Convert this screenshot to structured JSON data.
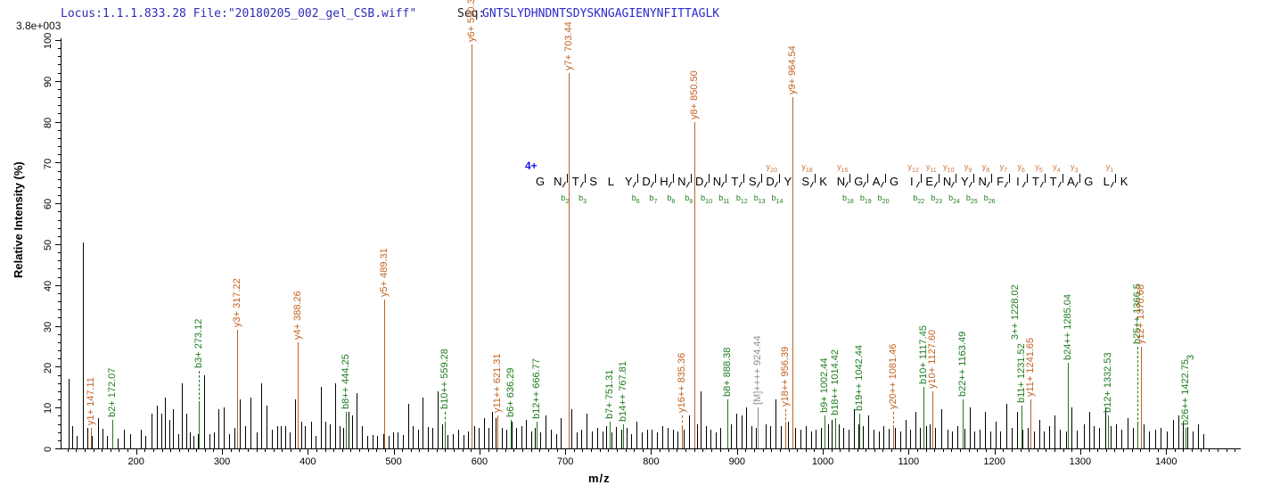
{
  "header": {
    "locus_file": "Locus:1.1.1.833.28 File:\"20180205_002_gel_CSB.wiff\"",
    "seq_label": "Seq:",
    "sequence": "GNTSLYDHNDNTSDYSKNGAGIENYNFITTAGLK",
    "max_intensity": "3.8e+003"
  },
  "colors": {
    "y_ion": "#c2621f",
    "b_ion": "#1e7b1e",
    "precursor": "#8c8c8c",
    "peak": "#000000",
    "header_text": "#2d2db4",
    "sequence_text": "#2a2acc",
    "charge_text": "#1515e6"
  },
  "axes": {
    "x_label": "m/z",
    "y_label": "Relative  Intensity (%)",
    "x_ticks": [
      200,
      300,
      400,
      500,
      600,
      700,
      800,
      900,
      1000,
      1100,
      1200,
      1300,
      1400
    ],
    "x_minor_step": 10,
    "x_min": 112,
    "x_max": 1487,
    "y_ticks": [
      0,
      10,
      20,
      30,
      40,
      50,
      60,
      70,
      80,
      90,
      100
    ],
    "y_minor_step": 2,
    "y_max": 100
  },
  "annotation": {
    "charge_label": "4+",
    "sequence": "GNTSLYDHNDNTSDYSKNGAGIENYNFITTAGLK",
    "b_ion_positions": [
      2,
      3,
      6,
      7,
      8,
      9,
      10,
      11,
      12,
      13,
      14,
      18,
      19,
      20,
      22,
      23,
      24,
      25,
      26
    ],
    "y_ion_numbers": [
      20,
      18,
      16,
      12,
      11,
      10,
      9,
      8,
      7,
      6,
      5,
      4,
      3,
      1
    ]
  },
  "chart_data": {
    "type": "bar",
    "subtype": "ms2-peptide-fragment-spectrum",
    "title": "MS/MS spectrum, precursor 4+, peptide GNTSLYDHNDNTSDYSKNGAGIENYNFITTAGLK",
    "xlabel": "m/z",
    "ylabel": "Relative  Intensity (%)",
    "x_range": [
      112,
      1487
    ],
    "y_range": [
      0,
      100
    ],
    "max_intensity_counts": "3.8e+003",
    "labeled_peaks": [
      {
        "label": "y1+ 147.11",
        "series": "y",
        "mz": 147.11,
        "intensity_pct": 5
      },
      {
        "label": "b2+ 172.07",
        "series": "b",
        "mz": 172.07,
        "intensity_pct": 7
      },
      {
        "label": "b3+ 273.12",
        "series": "b",
        "mz": 273.12,
        "intensity_pct": 11,
        "label_bottom_pct": 19,
        "dashed_leader": true
      },
      {
        "label": "y3+ 317.22",
        "series": "y",
        "mz": 317.22,
        "intensity_pct": 29
      },
      {
        "label": "y4+ 388.26",
        "series": "y",
        "mz": 388.26,
        "intensity_pct": 26
      },
      {
        "label": "b8++ 444.25",
        "series": "b",
        "mz": 444.25,
        "intensity_pct": 9
      },
      {
        "label": "y5+ 489.31",
        "series": "y",
        "mz": 489.31,
        "intensity_pct": 36.5
      },
      {
        "label": "b10++ 559.28",
        "series": "b",
        "mz": 559.28,
        "intensity_pct": 6,
        "label_bottom_pct": 9,
        "dashed_leader": true
      },
      {
        "label": "y6+ 590.35",
        "series": "y",
        "mz": 590.35,
        "intensity_pct": 99
      },
      {
        "label": "y11++ 621.31",
        "series": "y",
        "mz": 621.31,
        "intensity_pct": 8
      },
      {
        "label": "b6+ 636.29",
        "series": "b",
        "mz": 636.29,
        "intensity_pct": 7
      },
      {
        "label": "b12++ 666.77",
        "series": "b",
        "mz": 666.77,
        "intensity_pct": 6.5
      },
      {
        "label": "y7+ 703.44",
        "series": "y",
        "mz": 703.44,
        "intensity_pct": 92
      },
      {
        "label": "b7+ 751.31",
        "series": "b",
        "mz": 751.31,
        "intensity_pct": 6.5
      },
      {
        "label": "b14++ 767.81",
        "series": "b",
        "mz": 767.81,
        "intensity_pct": 6
      },
      {
        "label": "y16++ 835.36",
        "series": "y",
        "mz": 835.36,
        "intensity_pct": 5,
        "label_bottom_pct": 8,
        "dashed_leader": true
      },
      {
        "label": "y8+ 850.50",
        "series": "y",
        "mz": 850.5,
        "intensity_pct": 80
      },
      {
        "label": "b8+ 888.38",
        "series": "b",
        "mz": 888.38,
        "intensity_pct": 12
      },
      {
        "label": "[M]++++ 924.44",
        "series": "precursor",
        "mz": 924.44,
        "intensity_pct": 10
      },
      {
        "label": "y18++ 956.39",
        "series": "y",
        "mz": 956.39,
        "intensity_pct": 6,
        "label_bottom_pct": 9.5,
        "dashed_leader": true
      },
      {
        "label": "y9+ 964.54",
        "series": "y",
        "mz": 964.54,
        "intensity_pct": 86
      },
      {
        "label": "b9+ 1002.44",
        "series": "b",
        "mz": 1002.44,
        "intensity_pct": 8
      },
      {
        "label": "b18++ 1014.42",
        "series": "b",
        "mz": 1014.42,
        "intensity_pct": 7.5
      },
      {
        "label": "b19++ 1042.44",
        "series": "b",
        "mz": 1042.44,
        "intensity_pct": 8.5
      },
      {
        "label": "y20++ 1081.46",
        "series": "y",
        "mz": 1081.46,
        "intensity_pct": 5,
        "label_bottom_pct": 9,
        "dashed_leader": true
      },
      {
        "label": "b10+ 1117.45",
        "series": "b",
        "mz": 1117.45,
        "intensity_pct": 15
      },
      {
        "label": "y10+ 1127.60",
        "series": "y",
        "mz": 1127.6,
        "intensity_pct": 14
      },
      {
        "label": "b22++ 1163.49",
        "series": "b",
        "mz": 1163.49,
        "intensity_pct": 12
      },
      {
        "label": "3++ 1228.02",
        "series": "b",
        "mz": 1224,
        "intensity_pct": 0,
        "label_bottom_pct": 26,
        "label_only": true
      },
      {
        "label": "b11+ 1231.52",
        "series": "b",
        "mz": 1231.52,
        "intensity_pct": 10.5
      },
      {
        "label": "y11+ 1241.65",
        "series": "y",
        "mz": 1241.65,
        "intensity_pct": 12
      },
      {
        "label": "b24++ 1285.04",
        "series": "b",
        "mz": 1285.04,
        "intensity_pct": 21
      },
      {
        "label": "b12+ 1332.53",
        "series": "b",
        "mz": 1332.53,
        "intensity_pct": 8
      },
      {
        "label": "b25++ 1366.5",
        "series": "b",
        "mz": 1366.5,
        "intensity_pct": 6,
        "label_bottom_pct": 25,
        "dashed_leader": true
      },
      {
        "label": "y12+ 1370.68",
        "series": "y",
        "mz": 1370.68,
        "intensity_pct": 8,
        "label_bottom_pct": 25
      },
      {
        "label": "b26++ 1422.75",
        "series": "b",
        "mz": 1422.75,
        "intensity_pct": 5
      },
      {
        "label": "3",
        "series": "b",
        "mz": 1428.5,
        "intensity_pct": 0,
        "label_bottom_pct": 21,
        "label_only": true
      }
    ],
    "background_peaks": [
      [
        121,
        17
      ],
      [
        126,
        5.5
      ],
      [
        131,
        3
      ],
      [
        138,
        50.5
      ],
      [
        143,
        5
      ],
      [
        148,
        3
      ],
      [
        156,
        7.5
      ],
      [
        161,
        4.8
      ],
      [
        166,
        3
      ],
      [
        178,
        2.5
      ],
      [
        186,
        4.5
      ],
      [
        193,
        3.5
      ],
      [
        205,
        4.5
      ],
      [
        211,
        3
      ],
      [
        218,
        8.5
      ],
      [
        224,
        10.5
      ],
      [
        229,
        8.5
      ],
      [
        234,
        12.5
      ],
      [
        239,
        7
      ],
      [
        243,
        9.5
      ],
      [
        249,
        3.5
      ],
      [
        253,
        16
      ],
      [
        258,
        8.5
      ],
      [
        263,
        4
      ],
      [
        267,
        3
      ],
      [
        272,
        3.5
      ],
      [
        279,
        18
      ],
      [
        285,
        3.5
      ],
      [
        291,
        4
      ],
      [
        296,
        9.5
      ],
      [
        302,
        10
      ],
      [
        308,
        3.5
      ],
      [
        314,
        5
      ],
      [
        321,
        12
      ],
      [
        327,
        5.5
      ],
      [
        333,
        12.5
      ],
      [
        340,
        4
      ],
      [
        346,
        16
      ],
      [
        352,
        10.5
      ],
      [
        358,
        4.5
      ],
      [
        364,
        5.5
      ],
      [
        369,
        5.5
      ],
      [
        374,
        5.5
      ],
      [
        379,
        4
      ],
      [
        385,
        12
      ],
      [
        392,
        6.5
      ],
      [
        397,
        5.5
      ],
      [
        404,
        6.5
      ],
      [
        409,
        3
      ],
      [
        415,
        15
      ],
      [
        420,
        6.5
      ],
      [
        426,
        6
      ],
      [
        432,
        16
      ],
      [
        437,
        5.5
      ],
      [
        441,
        5
      ],
      [
        447,
        9
      ],
      [
        452,
        8
      ],
      [
        457,
        13.5
      ],
      [
        463,
        5.5
      ],
      [
        469,
        3
      ],
      [
        475,
        3.2
      ],
      [
        481,
        3
      ],
      [
        488,
        3.5
      ],
      [
        494,
        3
      ],
      [
        499,
        4
      ],
      [
        505,
        4
      ],
      [
        511,
        3.2
      ],
      [
        517,
        11
      ],
      [
        522,
        5.5
      ],
      [
        528,
        4.5
      ],
      [
        534,
        12.5
      ],
      [
        540,
        5.2
      ],
      [
        545,
        5
      ],
      [
        551,
        14
      ],
      [
        557,
        6
      ],
      [
        563,
        3.2
      ],
      [
        569,
        3.6
      ],
      [
        575,
        4.5
      ],
      [
        581,
        3.2
      ],
      [
        587,
        4.2
      ],
      [
        594,
        5.5
      ],
      [
        599,
        5
      ],
      [
        605,
        7.5
      ],
      [
        610,
        5
      ],
      [
        615,
        9
      ],
      [
        619,
        7.5
      ],
      [
        626,
        5
      ],
      [
        631,
        4.5
      ],
      [
        638,
        6.5
      ],
      [
        643,
        5
      ],
      [
        649,
        5.5
      ],
      [
        654,
        7
      ],
      [
        660,
        4.2
      ],
      [
        665,
        5
      ],
      [
        671,
        4
      ],
      [
        677,
        8
      ],
      [
        683,
        4.5
      ],
      [
        689,
        3.5
      ],
      [
        695,
        7.5
      ],
      [
        707,
        9.5
      ],
      [
        713,
        4
      ],
      [
        719,
        4.5
      ],
      [
        725,
        8.5
      ],
      [
        731,
        4.2
      ],
      [
        737,
        5
      ],
      [
        743,
        4.2
      ],
      [
        748,
        5.5
      ],
      [
        754,
        4
      ],
      [
        759,
        5.2
      ],
      [
        765,
        4.5
      ],
      [
        771,
        5
      ],
      [
        777,
        3.5
      ],
      [
        783,
        6.5
      ],
      [
        789,
        4
      ],
      [
        795,
        4.5
      ],
      [
        801,
        4.5
      ],
      [
        807,
        4
      ],
      [
        813,
        5.5
      ],
      [
        819,
        5
      ],
      [
        825,
        4.5
      ],
      [
        831,
        4.2
      ],
      [
        838,
        4.5
      ],
      [
        844,
        8
      ],
      [
        853,
        6
      ],
      [
        858,
        14
      ],
      [
        864,
        5.5
      ],
      [
        869,
        4.5
      ],
      [
        875,
        4
      ],
      [
        881,
        5
      ],
      [
        893,
        6
      ],
      [
        899,
        8.5
      ],
      [
        905,
        8
      ],
      [
        911,
        10
      ],
      [
        917,
        5.5
      ],
      [
        922,
        5
      ],
      [
        933,
        6
      ],
      [
        939,
        5.5
      ],
      [
        945,
        12
      ],
      [
        951,
        5.5
      ],
      [
        959,
        6.5
      ],
      [
        968,
        5
      ],
      [
        974,
        4.5
      ],
      [
        980,
        5.5
      ],
      [
        986,
        4.2
      ],
      [
        992,
        4.5
      ],
      [
        998,
        5
      ],
      [
        1006,
        6
      ],
      [
        1010,
        7
      ],
      [
        1019,
        6
      ],
      [
        1024,
        5
      ],
      [
        1030,
        4.5
      ],
      [
        1036,
        9.5
      ],
      [
        1041,
        6
      ],
      [
        1047,
        5.5
      ],
      [
        1053,
        8
      ],
      [
        1059,
        4.5
      ],
      [
        1065,
        4.2
      ],
      [
        1071,
        5.5
      ],
      [
        1077,
        4.8
      ],
      [
        1084,
        5
      ],
      [
        1090,
        4.2
      ],
      [
        1096,
        7
      ],
      [
        1102,
        4.5
      ],
      [
        1108,
        9
      ],
      [
        1113,
        5
      ],
      [
        1120,
        5.5
      ],
      [
        1125,
        6
      ],
      [
        1131,
        5
      ],
      [
        1138,
        9.5
      ],
      [
        1145,
        4.5
      ],
      [
        1151,
        4.2
      ],
      [
        1157,
        5.5
      ],
      [
        1165,
        4.8
      ],
      [
        1171,
        10
      ],
      [
        1177,
        4.2
      ],
      [
        1183,
        4.5
      ],
      [
        1189,
        9
      ],
      [
        1195,
        4.2
      ],
      [
        1201,
        6.5
      ],
      [
        1207,
        4.2
      ],
      [
        1214,
        11
      ],
      [
        1220,
        5
      ],
      [
        1226,
        9
      ],
      [
        1233,
        4.5
      ],
      [
        1239,
        5
      ],
      [
        1246,
        4.2
      ],
      [
        1252,
        7
      ],
      [
        1258,
        4.2
      ],
      [
        1264,
        5.5
      ],
      [
        1270,
        8
      ],
      [
        1276,
        4.5
      ],
      [
        1283,
        4.2
      ],
      [
        1290,
        10
      ],
      [
        1296,
        4.4
      ],
      [
        1304,
        6
      ],
      [
        1310,
        9
      ],
      [
        1316,
        5.5
      ],
      [
        1322,
        5
      ],
      [
        1329,
        10
      ],
      [
        1335,
        5.5
      ],
      [
        1342,
        6
      ],
      [
        1348,
        4.5
      ],
      [
        1355,
        7.5
      ],
      [
        1361,
        5
      ],
      [
        1367,
        4.8
      ],
      [
        1374,
        6
      ],
      [
        1380,
        4.2
      ],
      [
        1387,
        4.5
      ],
      [
        1394,
        5
      ],
      [
        1401,
        4.2
      ],
      [
        1408,
        7
      ],
      [
        1414,
        8
      ],
      [
        1419,
        6.5
      ],
      [
        1425,
        5.2
      ],
      [
        1431,
        4.2
      ],
      [
        1437,
        6
      ],
      [
        1443,
        3.5
      ]
    ]
  }
}
